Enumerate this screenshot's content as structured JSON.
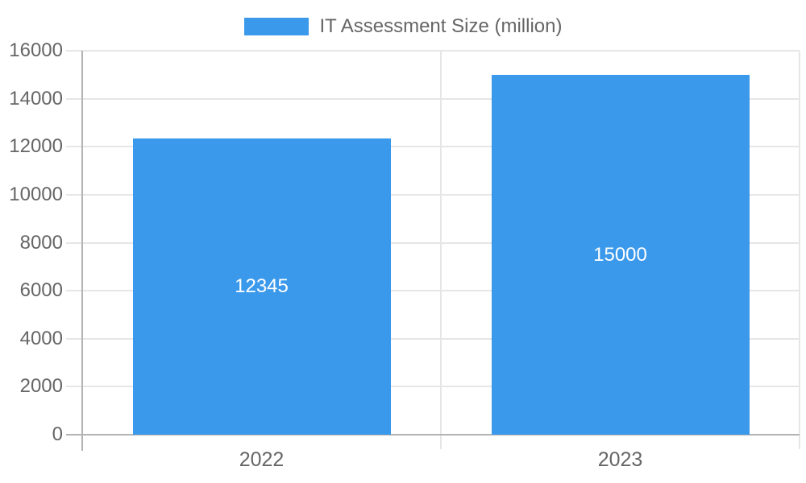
{
  "page": {
    "background": "#ffffff"
  },
  "legend": {
    "label": "IT Assessment Size (million)"
  },
  "chart_data": {
    "type": "bar",
    "title": "",
    "xlabel": "",
    "ylabel": "",
    "categories": [
      "2022",
      "2023"
    ],
    "values": [
      12345,
      15000
    ],
    "bar_value_labels": [
      "12345",
      "15000"
    ],
    "series_name": "IT Assessment Size (million)",
    "legend_position": "top",
    "ylim": [
      0,
      16000
    ],
    "ytick_step": 2000,
    "ytick_labels": [
      "0",
      "2000",
      "4000",
      "6000",
      "8000",
      "10000",
      "12000",
      "14000",
      "16000"
    ],
    "grid": true,
    "colors": {
      "bar": "#3B99EB",
      "axis_text": "#666666",
      "gridline": "#E6E6E6",
      "axis_line": "#B3B3B3",
      "bar_label_text": "#FFFFFF"
    }
  }
}
